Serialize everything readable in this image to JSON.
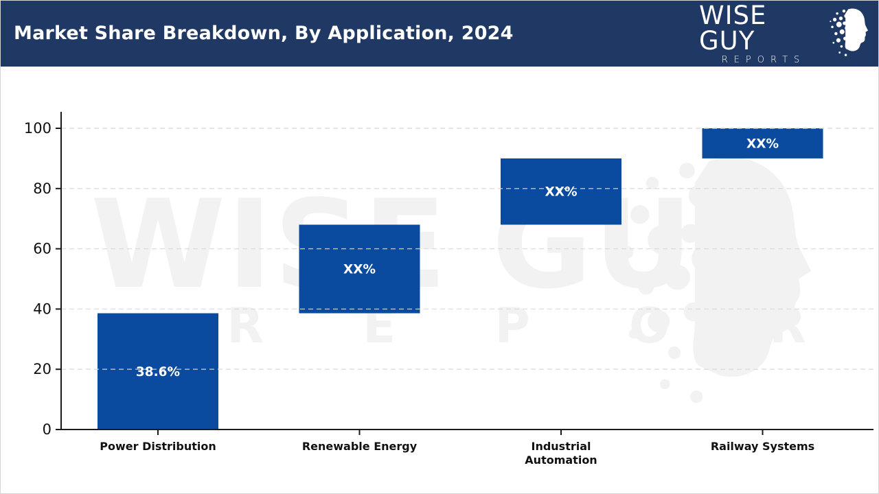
{
  "header": {
    "title": "Market Share Breakdown, By Application, 2024",
    "bg_color": "#1f3864",
    "logo": {
      "line1": "WISE GUY",
      "line2": "REPORTS"
    }
  },
  "watermark": {
    "line1": "WISE GUY",
    "line2": "R E P O R T S"
  },
  "chart_data": {
    "type": "bar",
    "subtype": "waterfall",
    "title": "Market Share Breakdown, By Application, 2024",
    "xlabel": "",
    "ylabel": "",
    "categories": [
      "Power Distribution",
      "Renewable Energy",
      "Industrial\nAutomation",
      "Railway Systems"
    ],
    "segments": [
      {
        "category": "Power Distribution",
        "start": 0,
        "end": 38.6,
        "label": "38.6%"
      },
      {
        "category": "Renewable Energy",
        "start": 38.6,
        "end": 68,
        "label": "XX%"
      },
      {
        "category": "Industrial\nAutomation",
        "start": 68,
        "end": 90,
        "label": "XX%"
      },
      {
        "category": "Railway Systems",
        "start": 90,
        "end": 100,
        "label": "XX%"
      }
    ],
    "yticks": [
      0,
      20,
      40,
      60,
      80,
      100
    ],
    "ylim": [
      0,
      105
    ],
    "grid": true,
    "legend": "none",
    "bar_color": "#0a4a9f",
    "bar_label_color": "#ffffff",
    "gridline_color": "#d9d9d9",
    "axis_color": "#1a1a1a"
  }
}
